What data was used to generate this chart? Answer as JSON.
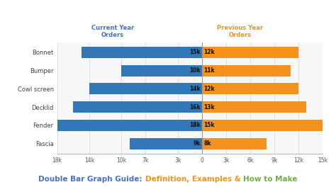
{
  "categories": [
    "Fascia",
    "Fender",
    "Decklid",
    "Cowl screen",
    "Bumper",
    "Bonnet"
  ],
  "current_year": [
    9,
    18,
    16,
    14,
    10,
    15
  ],
  "previous_year": [
    8,
    15,
    13,
    12,
    11,
    12
  ],
  "bar_color_current": "#3278b8",
  "bar_color_previous": "#f5921e",
  "background_color": "#ffffff",
  "chart_bg": "#f7f7f7",
  "title_parts": [
    {
      "text": "Double Bar Graph Guide: ",
      "color": "#4472c4"
    },
    {
      "text": "Definition, Examples & ",
      "color": "#f5921e"
    },
    {
      "text": "How to Make",
      "color": "#70ad47"
    }
  ],
  "legend_current_label": "Current Year\nOrders",
  "legend_previous_label": "Previous Year\nOrders",
  "legend_current_color": "#4472c4",
  "legend_previous_color": "#f5921e",
  "xlim_left": -18,
  "xlim_right": 15,
  "xticks": [
    -18,
    -14,
    -10,
    -7,
    -3,
    0,
    3,
    6,
    9,
    12,
    15
  ],
  "xticklabels": [
    "18k",
    "14k",
    "10k",
    "7k",
    "3k",
    "0",
    "3k",
    "6k",
    "9k",
    "12k",
    "15k"
  ],
  "bar_height": 0.62,
  "value_fontsize": 5.5,
  "tick_fontsize": 5.5,
  "ytick_fontsize": 6.0,
  "legend_fontsize": 6.0,
  "title_fontsize": 7.5
}
